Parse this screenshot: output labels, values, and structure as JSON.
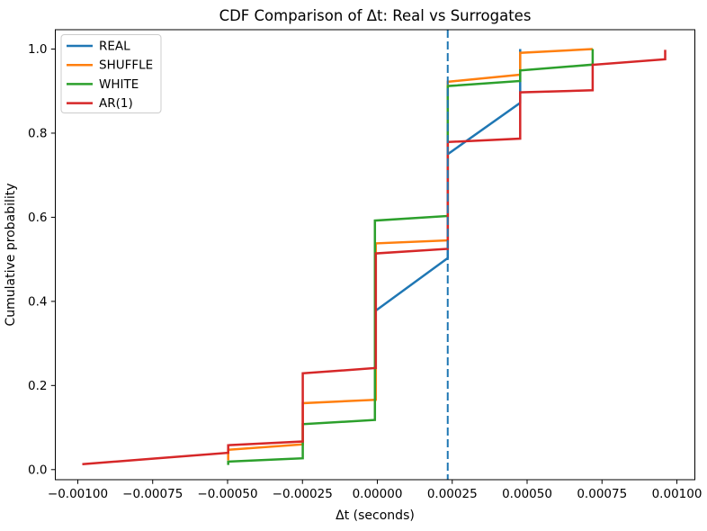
{
  "figure": {
    "background": "#ffffff"
  },
  "chart_data": {
    "type": "line",
    "subtype": "empirical-cdf-step",
    "title": "CDF Comparison of Δt: Real vs Surrogates",
    "xlabel": "Δt (seconds)",
    "ylabel": "Cumulative probability",
    "xlim": [
      -0.001075,
      0.00106
    ],
    "ylim": [
      -0.024,
      1.046
    ],
    "grid": false,
    "x_tick_values": [
      -0.001,
      -0.00075,
      -0.0005,
      -0.00025,
      0.0,
      0.00025,
      0.0005,
      0.00075,
      0.001
    ],
    "x_tick_labels": [
      "−0.00100",
      "−0.00075",
      "−0.00050",
      "−0.00025",
      "0.00000",
      "0.00025",
      "0.00050",
      "0.00075",
      "0.00100"
    ],
    "y_tick_values": [
      0.0,
      0.2,
      0.4,
      0.6,
      0.8,
      1.0
    ],
    "y_tick_labels": [
      "0.0",
      "0.2",
      "0.4",
      "0.6",
      "0.8",
      "1.0"
    ],
    "vline": {
      "x": 0.000235,
      "color": "#1f77b4",
      "style": "dashed"
    },
    "legend": {
      "position": "upper-left",
      "items": [
        "REAL",
        "SHUFFLE",
        "WHITE",
        "AR(1)"
      ]
    },
    "series": [
      {
        "name": "REAL",
        "color": "#1f77b4",
        "points": [
          [
            -5e-06,
            0.378
          ],
          [
            0.000235,
            0.503
          ],
          [
            0.000235,
            0.75
          ],
          [
            0.000477,
            0.872
          ],
          [
            0.000477,
            1.0
          ]
        ]
      },
      {
        "name": "SHUFFLE",
        "color": "#ff7f0e",
        "points": [
          [
            -0.000498,
            0.022
          ],
          [
            -0.000498,
            0.047
          ],
          [
            -0.000249,
            0.06
          ],
          [
            -0.000249,
            0.158
          ],
          [
            -5e-06,
            0.166
          ],
          [
            -5e-06,
            0.538
          ],
          [
            0.000235,
            0.545
          ],
          [
            0.000235,
            0.922
          ],
          [
            0.000477,
            0.939
          ],
          [
            0.000477,
            0.991
          ],
          [
            0.000719,
            1.0
          ]
        ]
      },
      {
        "name": "WHITE",
        "color": "#2ca02c",
        "points": [
          [
            -0.000498,
            0.011
          ],
          [
            -0.000498,
            0.019
          ],
          [
            -0.000249,
            0.027
          ],
          [
            -0.000249,
            0.108
          ],
          [
            -8e-06,
            0.118
          ],
          [
            -8e-06,
            0.592
          ],
          [
            0.000235,
            0.603
          ],
          [
            0.000235,
            0.912
          ],
          [
            0.000477,
            0.924
          ],
          [
            0.000477,
            0.949
          ],
          [
            0.000719,
            0.963
          ],
          [
            0.000719,
            1.0
          ]
        ]
      },
      {
        "name": "AR(1)",
        "color": "#d62728",
        "points": [
          [
            -0.000985,
            0.013
          ],
          [
            -0.000498,
            0.04
          ],
          [
            -0.000498,
            0.058
          ],
          [
            -0.000249,
            0.067
          ],
          [
            -0.000249,
            0.229
          ],
          [
            -5e-06,
            0.2415
          ],
          [
            -5e-06,
            0.514
          ],
          [
            0.000235,
            0.525
          ],
          [
            0.000235,
            0.779
          ],
          [
            0.000477,
            0.787
          ],
          [
            0.000477,
            0.897
          ],
          [
            0.000719,
            0.902
          ],
          [
            0.000719,
            0.9625
          ],
          [
            0.000961,
            0.9755
          ],
          [
            0.000961,
            0.998
          ]
        ]
      }
    ]
  }
}
